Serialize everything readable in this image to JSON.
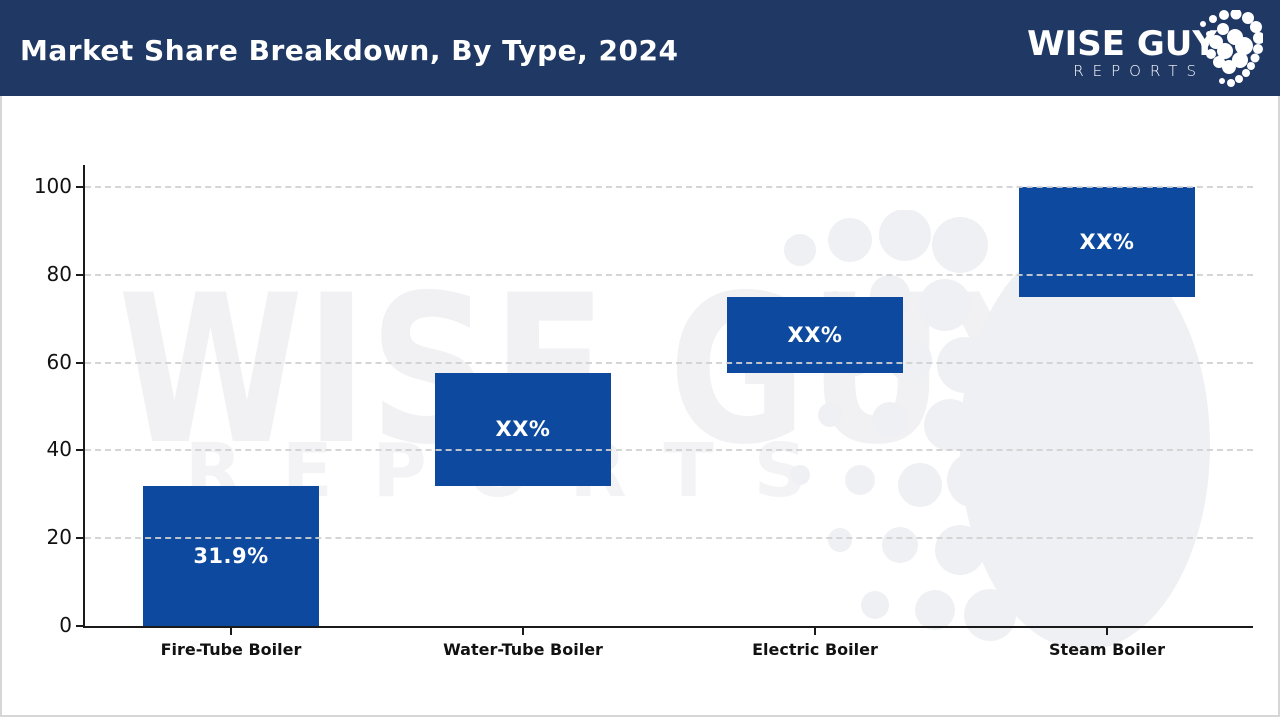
{
  "header": {
    "title": "Market Share Breakdown, By Type, 2024",
    "logo_line1": "WISE GUY",
    "logo_line2": "REPORTS"
  },
  "watermark": {
    "line1": "WISE GUY",
    "line2": "REPORTS"
  },
  "chart_data": {
    "type": "bar",
    "subtype": "waterfall",
    "title": "Market Share Breakdown, By Type, 2024",
    "categories": [
      "Fire-Tube Boiler",
      "Water-Tube Boiler",
      "Electric Boiler",
      "Steam Boiler"
    ],
    "segments": [
      {
        "category": "Fire-Tube Boiler",
        "label": "31.9%",
        "start": 0,
        "end": 31.9
      },
      {
        "category": "Water-Tube Boiler",
        "label": "XX%",
        "start": 31.9,
        "end": 57.7
      },
      {
        "category": "Electric Boiler",
        "label": "XX%",
        "start": 57.7,
        "end": 74.9
      },
      {
        "category": "Steam Boiler",
        "label": "XX%",
        "start": 74.9,
        "end": 100
      }
    ],
    "ylim": [
      0,
      100
    ],
    "yticks": [
      0,
      20,
      40,
      60,
      80,
      100
    ],
    "xlabel": "",
    "ylabel": "",
    "grid": "horizontal-dashed",
    "legend": "none",
    "bar_color": "#0d4a9f",
    "label_color": "#ffffff",
    "header_bg_color": "#203864",
    "grid_color": "#d0d0d2"
  }
}
